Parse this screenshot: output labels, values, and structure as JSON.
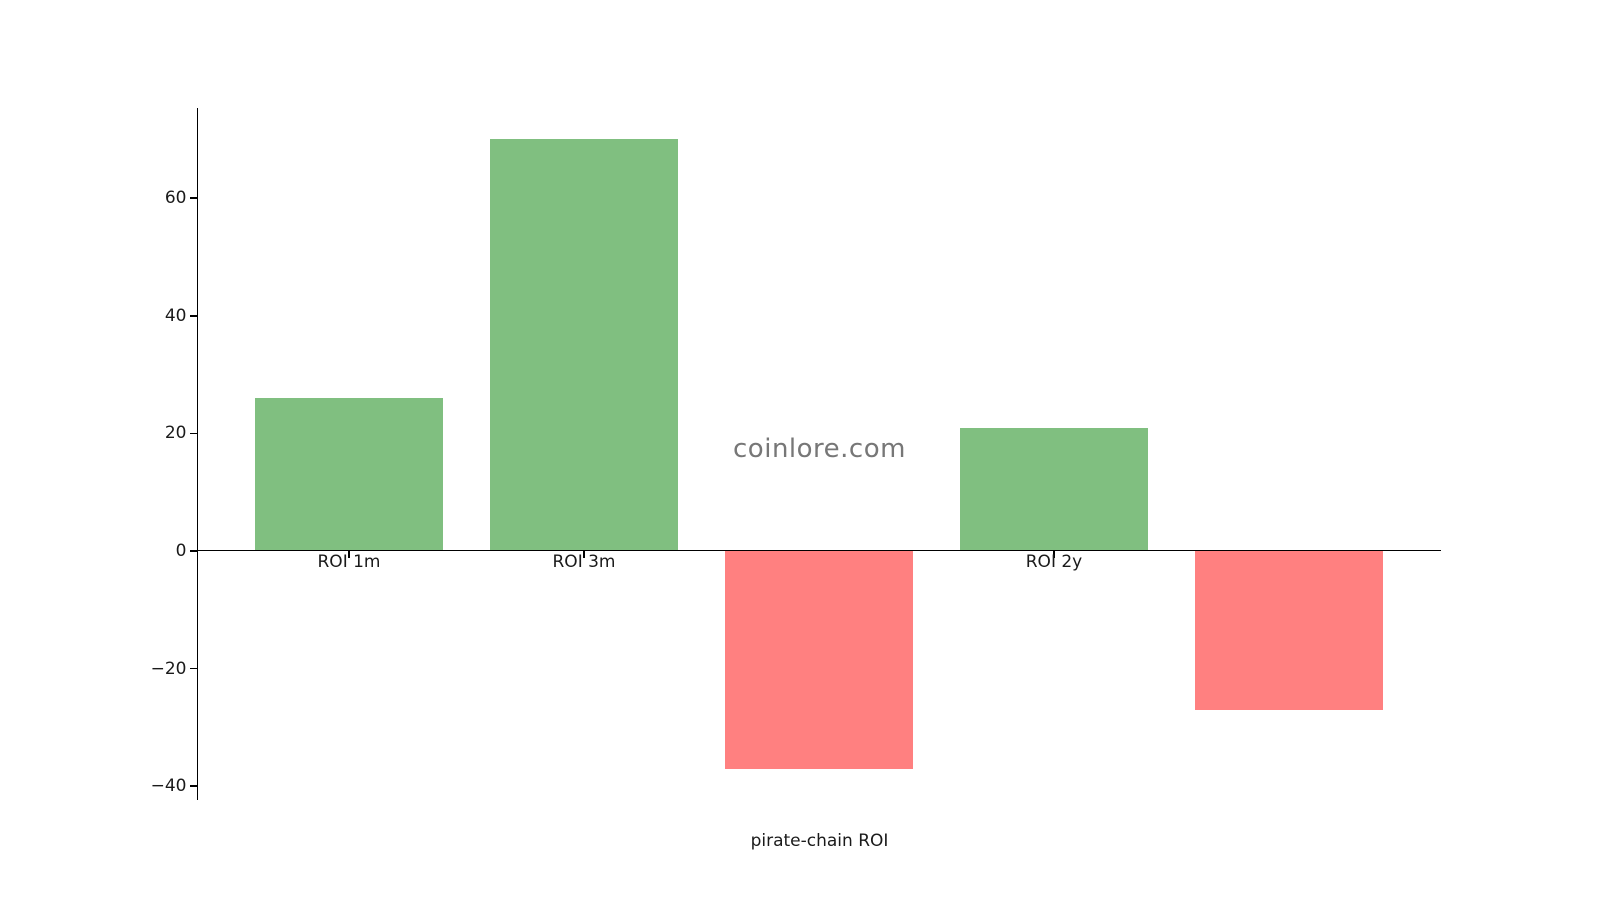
{
  "watermark": "coinlore.com",
  "xlabel": "pirate-chain ROI",
  "colors": {
    "positive_bar": "#80bf80",
    "negative_bar": "#ff8080",
    "axis": "#000000",
    "watermark_text": "#777777"
  },
  "chart_data": {
    "type": "bar",
    "title": "pirate-chain ROI",
    "watermark": "coinlore.com",
    "categories": [
      "ROI 1m",
      "ROI 3m",
      "",
      "ROI 2y",
      ""
    ],
    "values": [
      26,
      70,
      -37,
      21,
      -27
    ],
    "bars": [
      {
        "label": "ROI 1m",
        "value": 26,
        "color": "#80bf80"
      },
      {
        "label": "ROI 3m",
        "value": 70,
        "color": "#80bf80"
      },
      {
        "label": "",
        "value": -37,
        "color": "#ff8080"
      },
      {
        "label": "ROI 2y",
        "value": 21,
        "color": "#80bf80"
      },
      {
        "label": "",
        "value": -27,
        "color": "#ff8080"
      }
    ],
    "y_ticks": [
      {
        "value": 60,
        "label": "60"
      },
      {
        "value": 40,
        "label": "40"
      },
      {
        "value": 20,
        "label": "20"
      },
      {
        "value": 0,
        "label": "0"
      },
      {
        "value": -20,
        "label": "−20"
      },
      {
        "value": -40,
        "label": "−40"
      }
    ],
    "ylim": [
      -42.4,
      75.4
    ],
    "xlabel": "pirate-chain ROI",
    "grid": false,
    "legend": null
  }
}
